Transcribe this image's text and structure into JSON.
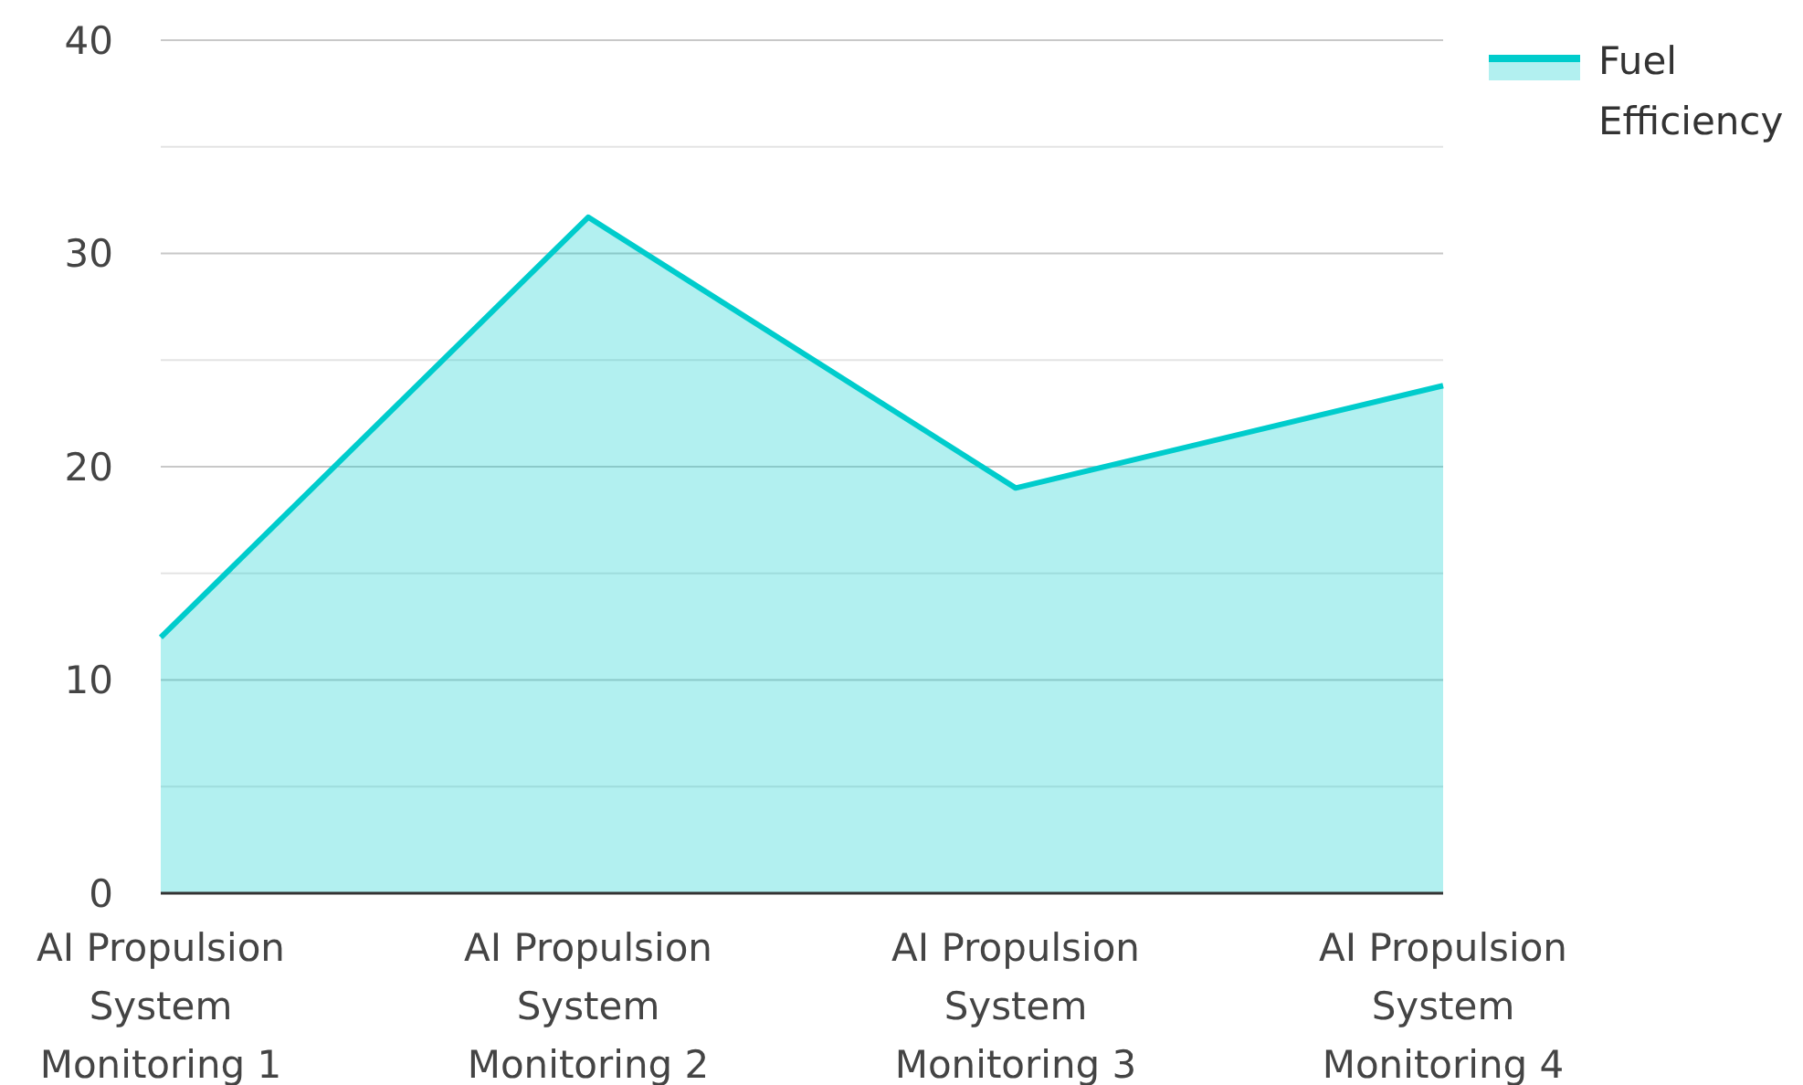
{
  "chart_data": {
    "type": "area",
    "categories": [
      "AI Propulsion System Monitoring 1",
      "AI Propulsion System Monitoring 2",
      "AI Propulsion System Monitoring 3",
      "AI Propulsion System Monitoring 4"
    ],
    "series": [
      {
        "name": "Fuel Efficiency",
        "color": "#00cccc",
        "values": [
          12,
          31.7,
          19,
          23.8
        ]
      }
    ],
    "ylim": [
      0,
      40
    ],
    "yticks": [
      0,
      {
        "value": 5,
        "label": null
      },
      10,
      {
        "value": 15,
        "label": null
      },
      20,
      {
        "value": 25,
        "label": null
      },
      30,
      {
        "value": 35,
        "label": null
      },
      40
    ],
    "grid": "y",
    "legend": "top right"
  }
}
